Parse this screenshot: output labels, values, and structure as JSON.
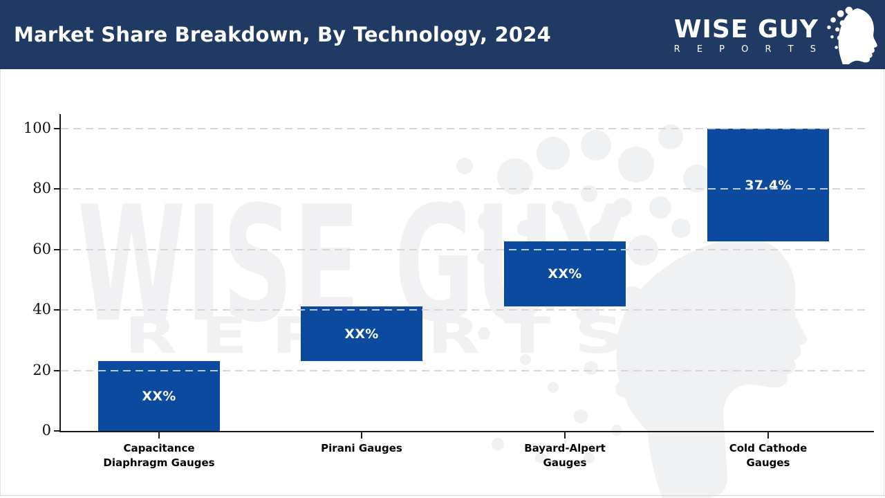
{
  "header": {
    "title": "Market Share Breakdown, By Technology, 2024",
    "logo": {
      "line1": "WISE GUY",
      "line2": "R E P O R T S"
    }
  },
  "watermark": {
    "line1": "WISE GUY",
    "line2": "R E P O R T S"
  },
  "colors": {
    "header_bg": "#213A64",
    "bar": "#0B4A9F",
    "gridline": "#d4d4d6",
    "watermark_gray": "#f1f1f3",
    "label_text": "#ffffff"
  },
  "chart_data": {
    "type": "bar",
    "subtype": "floating-waterfall",
    "title": "Market Share Breakdown, By Technology, 2024",
    "xlabel": "",
    "ylabel": "",
    "ylim": [
      0,
      105
    ],
    "yticks": [
      0,
      20,
      40,
      60,
      80,
      100
    ],
    "grid": "horizontal-dashed",
    "legend": "none",
    "categories": [
      "Capacitance Diaphragm Gauges",
      "Pirani Gauges",
      "Bayard-Alpert Gauges",
      "Cold Cathode Gauges"
    ],
    "category_lines": [
      [
        "Capacitance",
        "Diaphragm Gauges"
      ],
      [
        "Pirani Gauges"
      ],
      [
        "Bayard-Alpert",
        "Gauges"
      ],
      [
        "Cold Cathode",
        "Gauges"
      ]
    ],
    "segments": [
      {
        "category": "Capacitance Diaphragm Gauges",
        "start": 0,
        "end": 23.1,
        "value": 23.1,
        "label": "XX%"
      },
      {
        "category": "Pirani Gauges",
        "start": 23.1,
        "end": 41.2,
        "value": 18.1,
        "label": "XX%"
      },
      {
        "category": "Bayard-Alpert Gauges",
        "start": 41.2,
        "end": 62.6,
        "value": 21.4,
        "label": "XX%"
      },
      {
        "category": "Cold Cathode Gauges",
        "start": 62.6,
        "end": 100,
        "value": 37.4,
        "label": "37.4%"
      }
    ]
  }
}
